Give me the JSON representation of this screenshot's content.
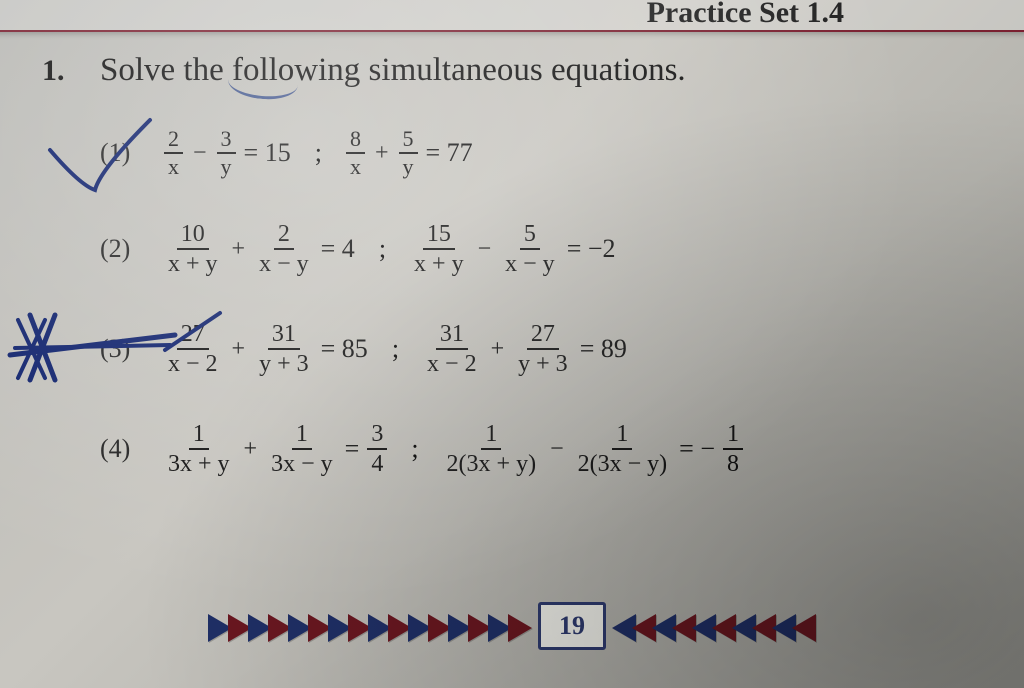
{
  "header": {
    "practice_set": "Practice Set 1.4"
  },
  "question": {
    "number": "1.",
    "text": "Solve the following simultaneous equations."
  },
  "items": [
    {
      "label": "(1)",
      "eq1_parts": {
        "f1n": "2",
        "f1d": "x",
        "op1": "−",
        "f2n": "3",
        "f2d": "y",
        "rhs": "= 15"
      },
      "sep": ";",
      "eq2_parts": {
        "f1n": "8",
        "f1d": "x",
        "op1": "+",
        "f2n": "5",
        "f2d": "y",
        "rhs": "= 77"
      }
    },
    {
      "label": "(2)",
      "eq1_parts": {
        "f1n": "10",
        "f1d": "x + y",
        "op1": "+",
        "f2n": "2",
        "f2d": "x − y",
        "rhs": "= 4"
      },
      "sep": ";",
      "eq2_parts": {
        "f1n": "15",
        "f1d": "x + y",
        "op1": "−",
        "f2n": "5",
        "f2d": "x − y",
        "rhs": "= −2"
      }
    },
    {
      "label": "(3)",
      "eq1_parts": {
        "f1n": "27",
        "f1d": "x − 2",
        "op1": "+",
        "f2n": "31",
        "f2d": "y + 3",
        "rhs": "= 85"
      },
      "sep": ";",
      "eq2_parts": {
        "f1n": "31",
        "f1d": "x − 2",
        "op1": "+",
        "f2n": "27",
        "f2d": "y + 3",
        "rhs": "= 89"
      }
    },
    {
      "label": "(4)",
      "eq1_parts": {
        "f1n": "1",
        "f1d": "3x + y",
        "op1": "+",
        "f2n": "1",
        "f2d": "3x − y",
        "rhs_frac_n": "3",
        "rhs_frac_d": "4",
        "rhs_pre": "= "
      },
      "sep": ";",
      "eq2_parts": {
        "f1n": "1",
        "f1d": "2(3x + y)",
        "op1": "−",
        "f2n": "1",
        "f2d": "2(3x − y)",
        "rhs_frac_n": "1",
        "rhs_frac_d": "8",
        "rhs_pre": "= −"
      }
    }
  ],
  "page_number": "19",
  "colors": {
    "arrow_a": "#1f2f66",
    "arrow_b": "#6a1720",
    "pen": "#0b1e6a"
  }
}
